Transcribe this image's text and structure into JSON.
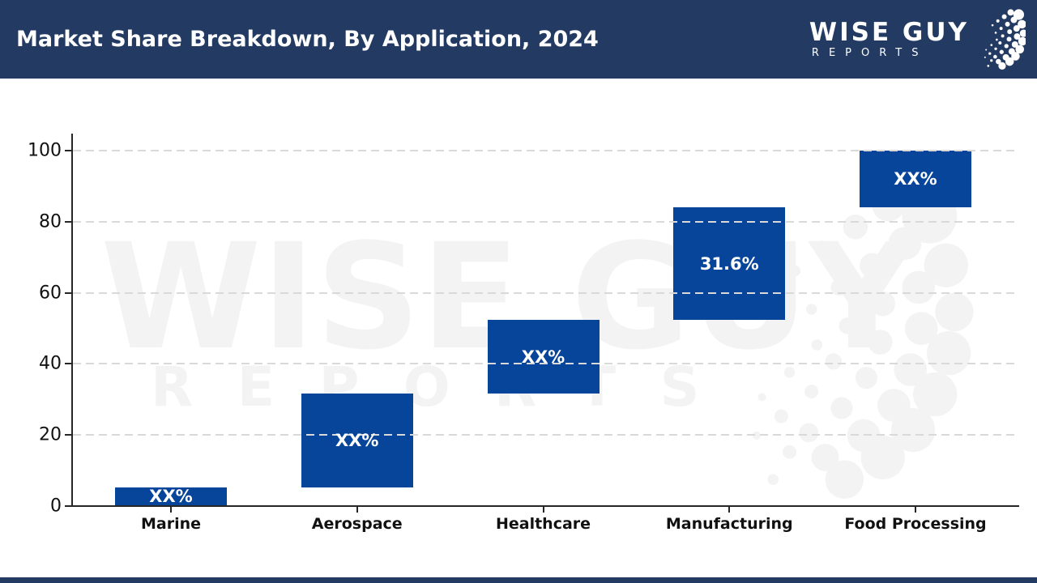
{
  "header": {
    "title": "Market Share Breakdown, By Application, 2024",
    "logo": {
      "wordmark": "WISE GUY",
      "subtext": "REPORTS",
      "icon": "dotted-head-icon"
    }
  },
  "watermark": {
    "wordmark": "WISE GUY",
    "subtext": "REPORTS",
    "icon": "dotted-head-icon"
  },
  "chart_data": {
    "type": "bar",
    "subtype": "waterfall",
    "title": "Market Share Breakdown, By Application, 2024",
    "categories": [
      "Marine",
      "Aerospace",
      "Healthcare",
      "Manufacturing",
      "Food Processing"
    ],
    "segments": [
      {
        "category": "Marine",
        "start": 0,
        "end": 5.3,
        "label": "XX%"
      },
      {
        "category": "Aerospace",
        "start": 5.3,
        "end": 31.6,
        "label": "XX%"
      },
      {
        "category": "Healthcare",
        "start": 31.6,
        "end": 52.4,
        "label": "XX%"
      },
      {
        "category": "Manufacturing",
        "start": 52.4,
        "end": 84.0,
        "label": "31.6%"
      },
      {
        "category": "Food Processing",
        "start": 84.0,
        "end": 100.0,
        "label": "XX%"
      }
    ],
    "values_are_percent": true,
    "yticks": [
      0,
      20,
      40,
      60,
      80,
      100
    ],
    "ylim": [
      0,
      105
    ],
    "xlabel": "",
    "ylabel": "",
    "grid": "horizontal-dashed",
    "grid_over_bars": true,
    "legend": "none",
    "bar_color": "#07459a",
    "bar_label_color": "#ffffff"
  },
  "colors": {
    "header_bg": "#233a63",
    "footer_bg": "#233a63",
    "bar": "#07459a",
    "grid": "#d9d9d9",
    "axis": "#262626",
    "watermark": "#f3f3f3",
    "title_text": "#ffffff",
    "tick_text": "#111111"
  }
}
